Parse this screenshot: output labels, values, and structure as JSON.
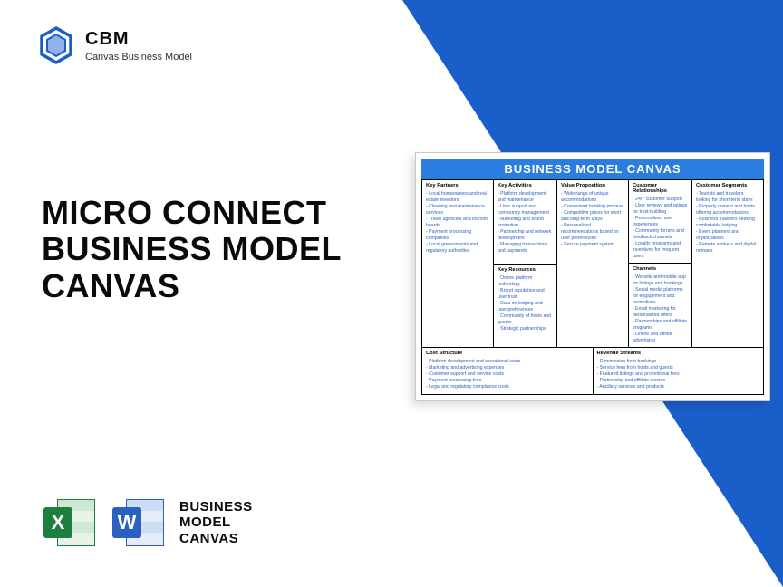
{
  "brand": {
    "code": "CBM",
    "name": "Canvas Business Model",
    "logo_color": "#1a5fc9"
  },
  "title_lines": [
    "MICRO CONNECT",
    "BUSINESS MODEL",
    "CANVAS"
  ],
  "footer": {
    "excel_color": "#1e7e3e",
    "word_color": "#2b5fc0",
    "label_lines": [
      "BUSINESS",
      "MODEL",
      "CANVAS"
    ]
  },
  "canvas": {
    "title": "BUSINESS MODEL CANVAS",
    "title_bg": "#2b7de0",
    "sections": {
      "key_partners": {
        "head": "Key Partners",
        "items": [
          "- Local homeowners and real estate investors",
          "- Cleaning and maintenance services",
          "- Travel agencies and tourism boards",
          "- Payment processing companies",
          "- Local governments and regulatory authorities"
        ]
      },
      "key_activities": {
        "head": "Key Activities",
        "items": [
          "- Platform development and maintenance",
          "- User support and community management",
          "- Marketing and brand promotion",
          "- Partnership and network development",
          "- Managing transactions and payments"
        ]
      },
      "value_proposition": {
        "head": "Value Proposition",
        "items": [
          "- Wide range of unique accommodations",
          "- Convenient booking process",
          "- Competitive prices for short and long-term stays",
          "- Personalized recommendations based on user preferences",
          "- Secure payment system"
        ]
      },
      "customer_relationships": {
        "head": "Customer Relationships",
        "items": [
          "- 24/7 customer support",
          "- User reviews and ratings for trust-building",
          "- Personalized user experiences",
          "- Community forums and feedback channels",
          "- Loyalty programs and incentives for frequent users"
        ]
      },
      "customer_segments": {
        "head": "Customer Segments",
        "items": [
          "- Tourists and travelers looking for short-term stays",
          "- Property owners and hosts offering accommodations",
          "- Business travelers seeking comfortable lodging",
          "- Event planners and organizations",
          "- Remote workers and digital nomads"
        ]
      },
      "key_resources": {
        "head": "Key Resources",
        "items": [
          "- Online platform technology",
          "- Brand reputation and user trust",
          "- Data on lodging and user preferences",
          "- Community of hosts and guests",
          "- Strategic partnerships"
        ]
      },
      "channels": {
        "head": "Channels",
        "items": [
          "- Website and mobile app for listings and bookings",
          "- Social media platforms for engagement and promotions",
          "- Email marketing for personalized offers",
          "- Partnerships and affiliate programs",
          "- Online and offline advertising"
        ]
      },
      "cost_structure": {
        "head": "Cost Structure",
        "items": [
          "- Platform development and operational costs",
          "- Marketing and advertising expenses",
          "- Customer support and service costs",
          "- Payment processing fees",
          "- Legal and regulatory compliance costs"
        ]
      },
      "revenue_streams": {
        "head": "Revenue Streams",
        "items": [
          "- Commission from bookings",
          "- Service fees from hosts and guests",
          "- Featured listings and promotional fees",
          "- Partnership and affiliate income",
          "- Ancillary services and products"
        ]
      }
    }
  }
}
